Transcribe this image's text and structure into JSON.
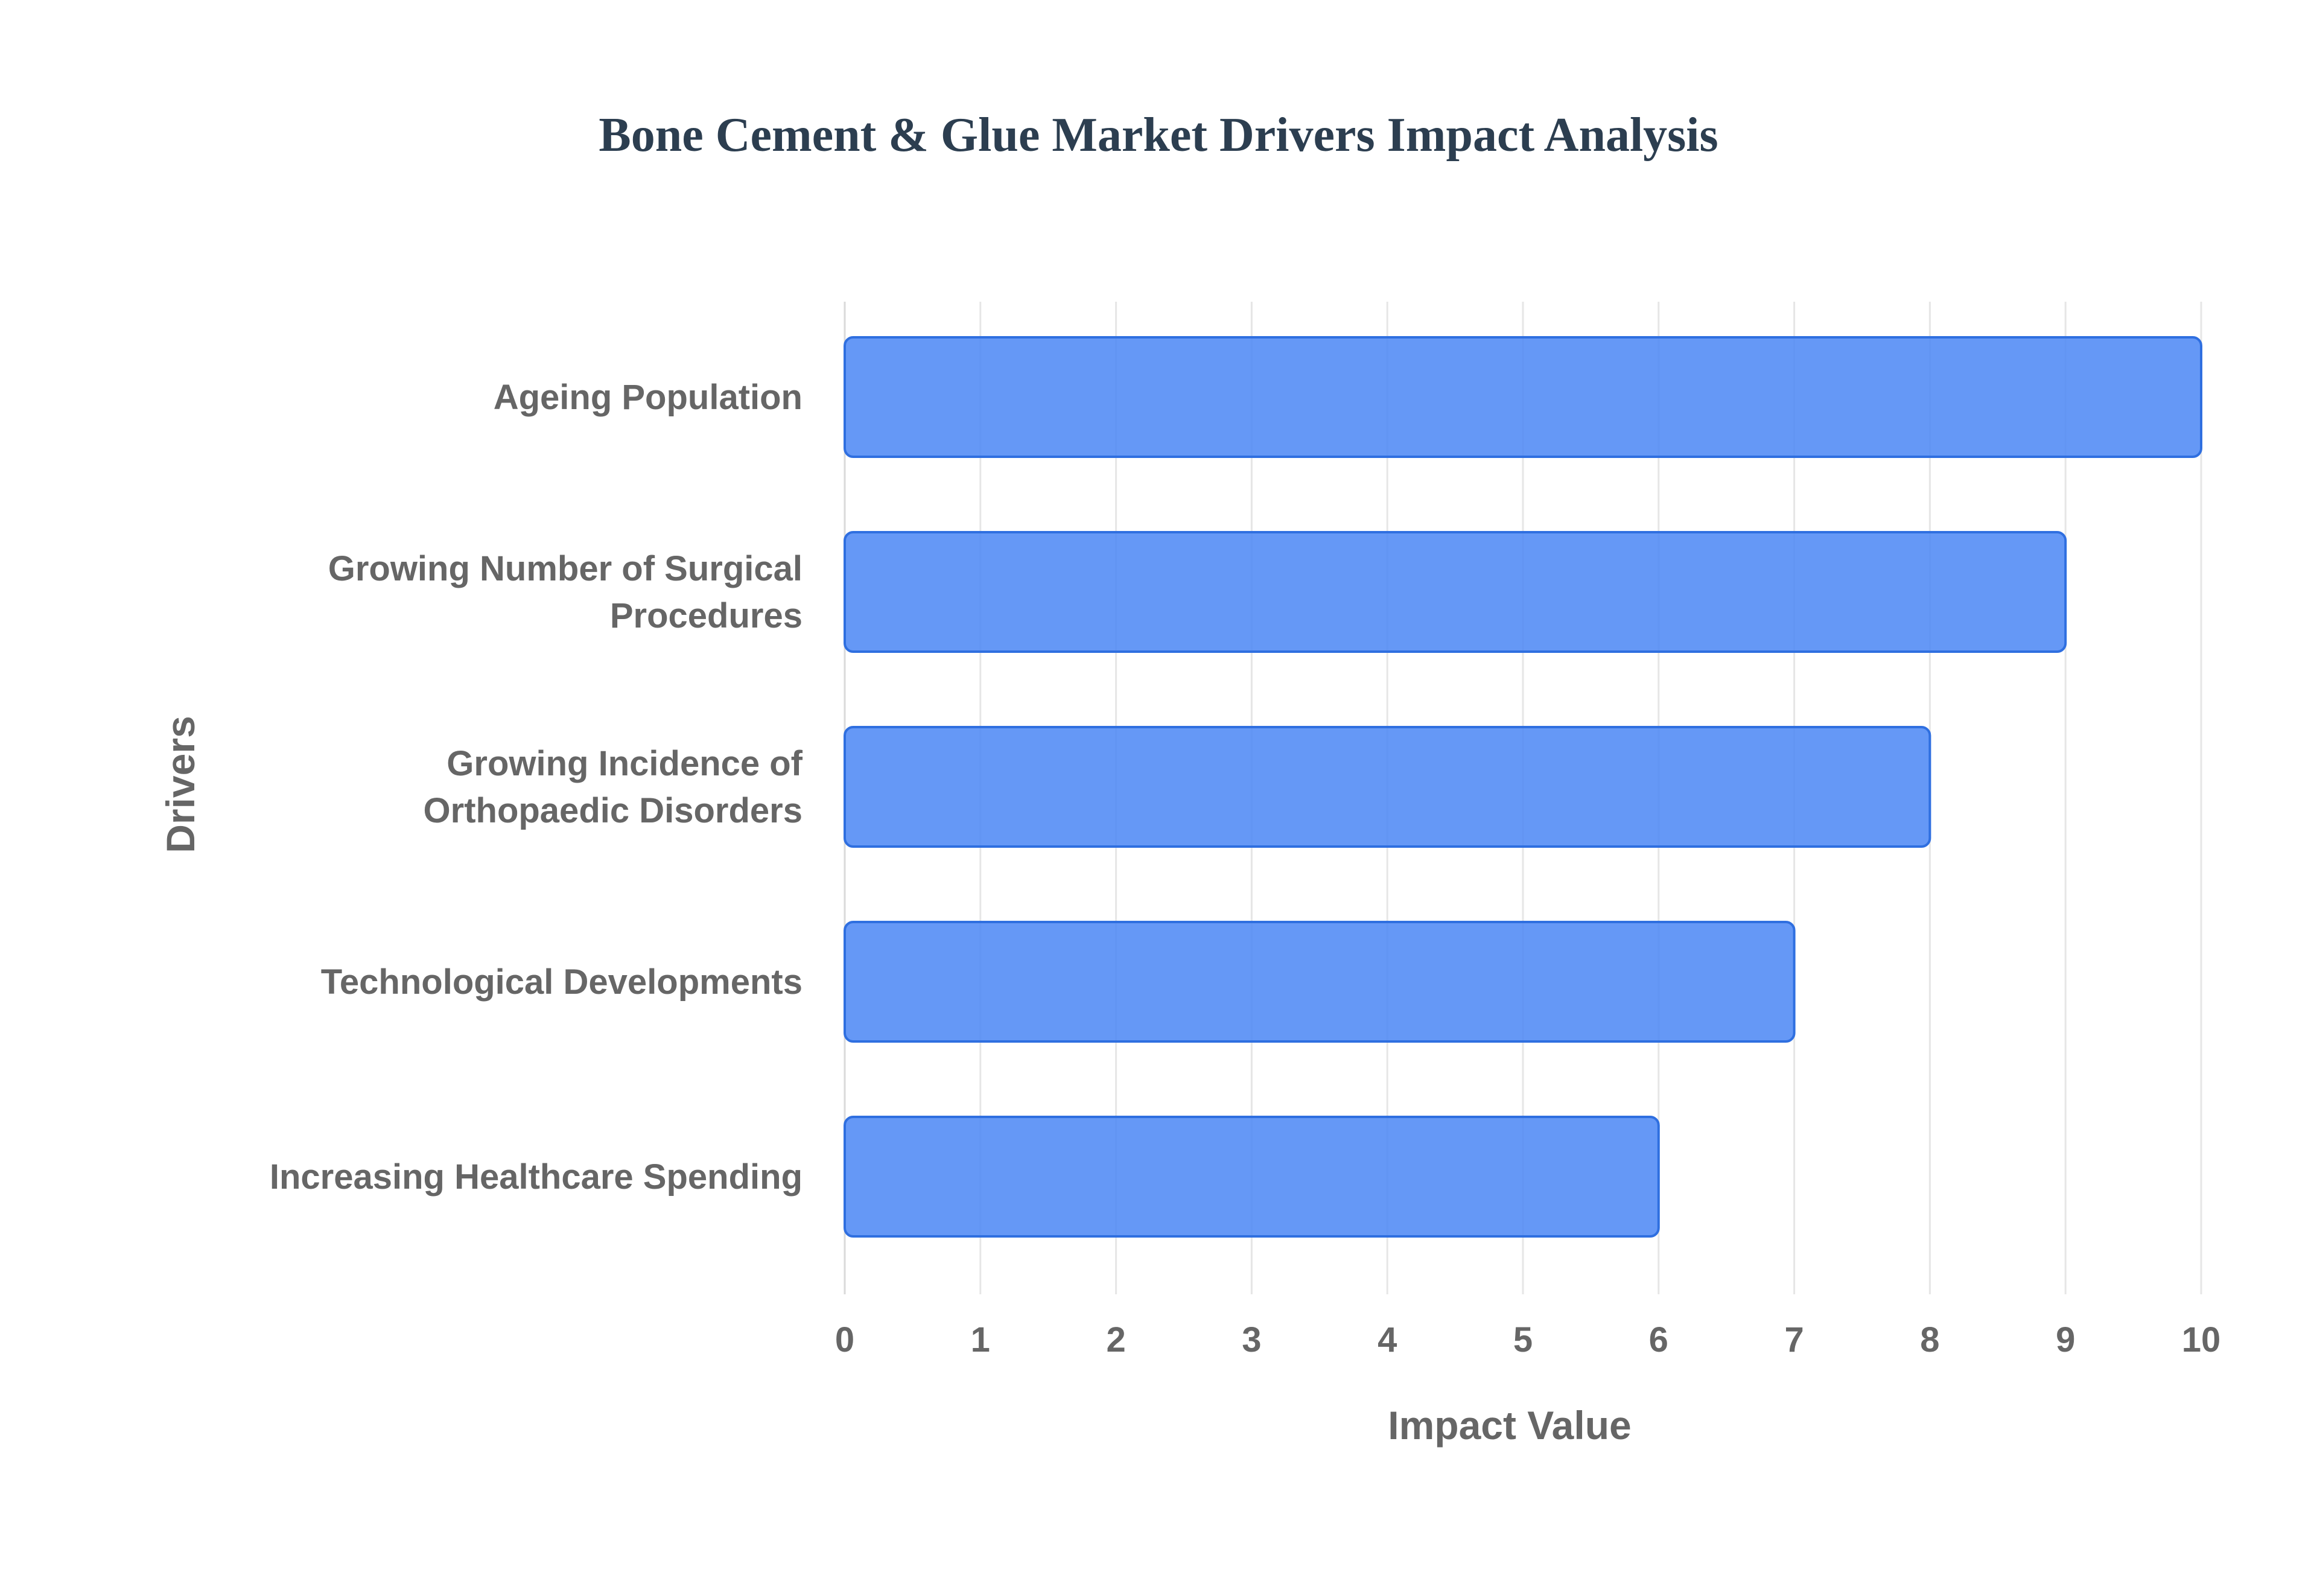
{
  "chart_data": {
    "type": "bar",
    "orientation": "horizontal",
    "title": "Bone Cement & Glue Market Drivers Impact Analysis",
    "xlabel": "Impact Value",
    "ylabel": "Drivers",
    "categories": [
      [
        "Ageing Population"
      ],
      [
        "Growing Number of Surgical",
        "Procedures"
      ],
      [
        "Growing Incidence of",
        "Orthopaedic Disorders"
      ],
      [
        "Technological Developments"
      ],
      [
        "Increasing Healthcare Spending"
      ]
    ],
    "values": [
      10,
      9,
      8,
      7,
      6
    ],
    "xlim": [
      0,
      10
    ],
    "xticks": [
      "0",
      "1",
      "2",
      "3",
      "4",
      "5",
      "6",
      "7",
      "8",
      "9",
      "10"
    ],
    "grid": true,
    "legend": false,
    "colors": {
      "bar_fill": "#4a86f4",
      "bar_stroke": "#2f6fe0",
      "title": "#2c3e50",
      "axis_text": "#666666",
      "grid": "#e6e6e6"
    }
  }
}
